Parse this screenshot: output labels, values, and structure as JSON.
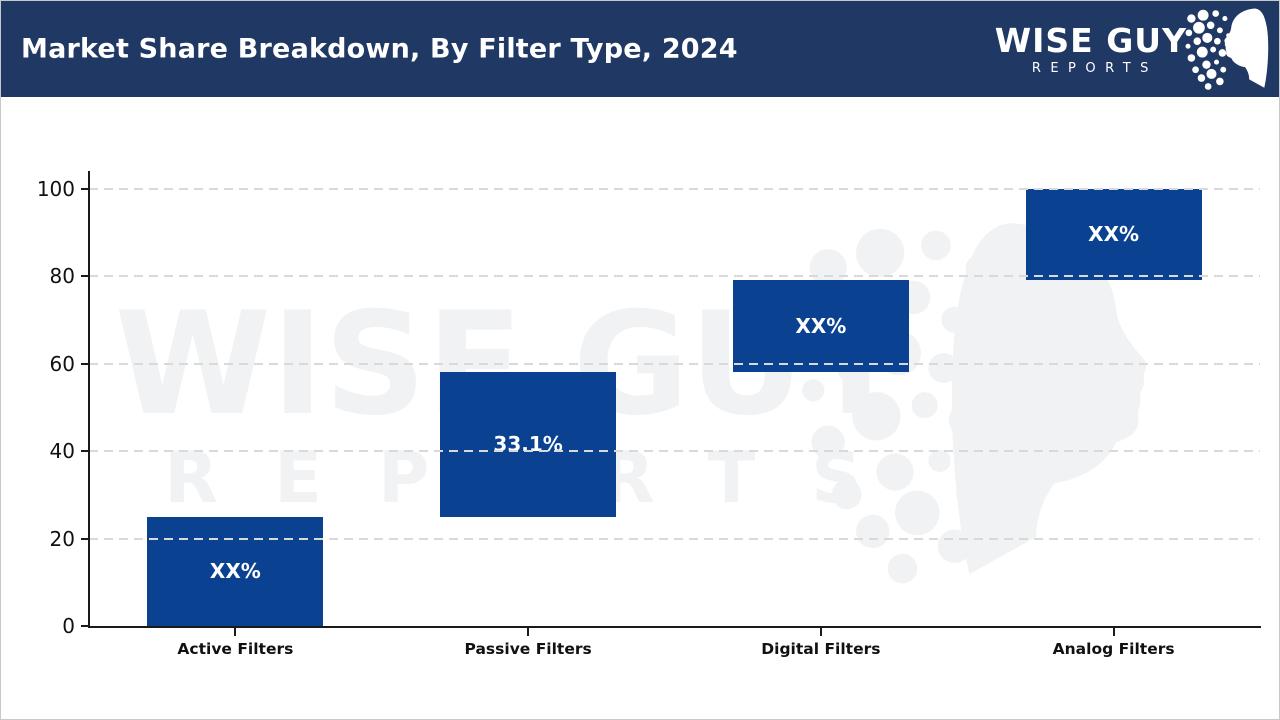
{
  "header": {
    "title": "Market Share Breakdown, By Filter Type, 2024",
    "logo": {
      "line1": "WISE GUY",
      "line2": "REPORTS"
    }
  },
  "watermark": {
    "line1": "WISE GUY",
    "line2": "REPORTS"
  },
  "colors": {
    "header_bg": "#203864",
    "bar": "#0a4191",
    "bar_label": "#ffffff",
    "gridline": "#d9d9d9",
    "axis": "#1a1a1a",
    "watermark": "#f1f2f4"
  },
  "chart_data": {
    "type": "bar",
    "subtype": "waterfall",
    "title": "Market Share Breakdown, By Filter Type, 2024",
    "categories": [
      "Active Filters",
      "Passive Filters",
      "Digital Filters",
      "Analog Filters"
    ],
    "segments": [
      {
        "category": "Active Filters",
        "from": 0,
        "to": 25,
        "label": "XX%"
      },
      {
        "category": "Passive Filters",
        "from": 25,
        "to": 58.1,
        "label": "33.1%"
      },
      {
        "category": "Digital Filters",
        "from": 58.1,
        "to": 79.2,
        "label": "XX%"
      },
      {
        "category": "Analog Filters",
        "from": 79.2,
        "to": 100,
        "label": "XX%"
      }
    ],
    "xlabel": "",
    "ylabel": "",
    "ylim": [
      0,
      100
    ],
    "yticks": [
      0,
      20,
      40,
      60,
      80,
      100
    ],
    "grid": "horizontal-dashed",
    "legend": null
  }
}
